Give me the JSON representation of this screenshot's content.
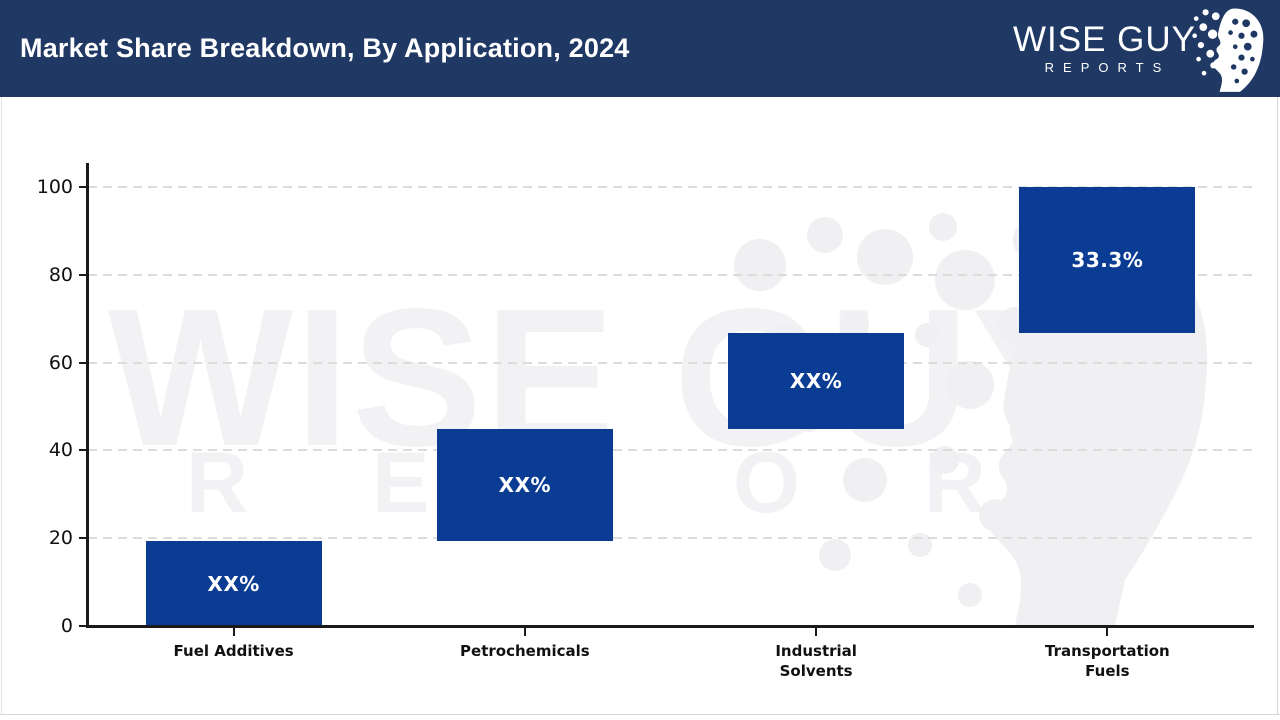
{
  "header": {
    "title": "Market Share Breakdown, By Application, 2024",
    "logo": {
      "line1": "WISE GUY",
      "line2": "REPORTS"
    }
  },
  "watermark": {
    "line1": "WISE GUY",
    "line2": "R E P O R T S"
  },
  "colors": {
    "header_bg": "#1f3864",
    "bar_blue": "#0a3c94",
    "grid_gray": "#dcdcdc",
    "axis_black": "#1a1a1a",
    "watermark_gray": "#f2f2f4"
  },
  "chart_data": {
    "type": "bar",
    "subtype": "waterfall",
    "title": "Market Share Breakdown, By Application, 2024",
    "xlabel": "",
    "ylabel": "",
    "ylim": [
      0,
      100
    ],
    "yticks": [
      0,
      20,
      40,
      60,
      80,
      100
    ],
    "grid": "horizontal-dashed",
    "legend": "none",
    "categories": [
      "Fuel Additives",
      "Petrochemicals",
      "Industrial Solvents",
      "Transportation Fuels"
    ],
    "segments": [
      {
        "category": "Fuel Additives",
        "display": "Fuel Additives",
        "start": 0,
        "end": 19.3,
        "value": 19.3,
        "label": "XX%"
      },
      {
        "category": "Petrochemicals",
        "display": "Petrochemicals",
        "start": 19.3,
        "end": 44.9,
        "value": 25.6,
        "label": "XX%"
      },
      {
        "category": "Industrial Solvents",
        "display": "Industrial\nSolvents",
        "start": 44.9,
        "end": 66.7,
        "value": 21.8,
        "label": "XX%"
      },
      {
        "category": "Transportation Fuels",
        "display": "Transportation\nFuels",
        "start": 66.7,
        "end": 100,
        "value": 33.3,
        "label": "33.3%"
      }
    ]
  }
}
